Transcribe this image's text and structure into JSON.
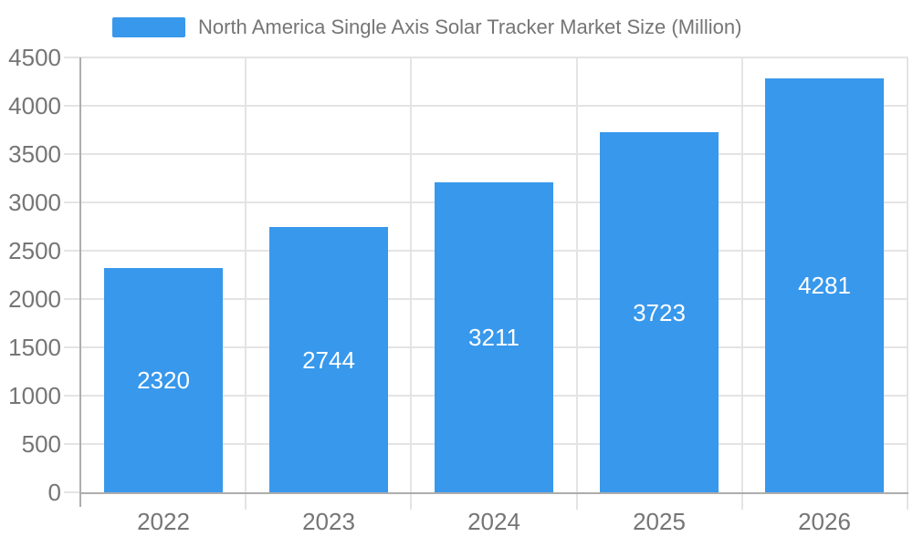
{
  "legend": {
    "label": "North America Single Axis Solar Tracker Market Size (Million)"
  },
  "chart_data": {
    "type": "bar",
    "title": "North America Single Axis Solar Tracker Market Size (Million)",
    "categories": [
      "2022",
      "2023",
      "2024",
      "2025",
      "2026"
    ],
    "series": [
      {
        "name": "North America Single Axis Solar Tracker Market Size (Million)",
        "values": [
          2320,
          2744,
          3211,
          3723,
          4281
        ]
      }
    ],
    "value_labels": [
      "2320",
      "2744",
      "3211",
      "3723",
      "4281"
    ],
    "xlabel": "",
    "ylabel": "",
    "ylim": [
      0,
      4500
    ],
    "ytick_step": 500,
    "ytick_labels": [
      "0",
      "500",
      "1000",
      "1500",
      "2000",
      "2500",
      "3000",
      "3500",
      "4000",
      "4500"
    ],
    "grid": true,
    "legend_position": "top",
    "colors": {
      "bar": "#3898ec",
      "value_label": "#ffffff",
      "axis_text": "#757575",
      "grid_line": "#e4e4e4",
      "axis_line": "#adadad",
      "background": "#ffffff"
    }
  }
}
